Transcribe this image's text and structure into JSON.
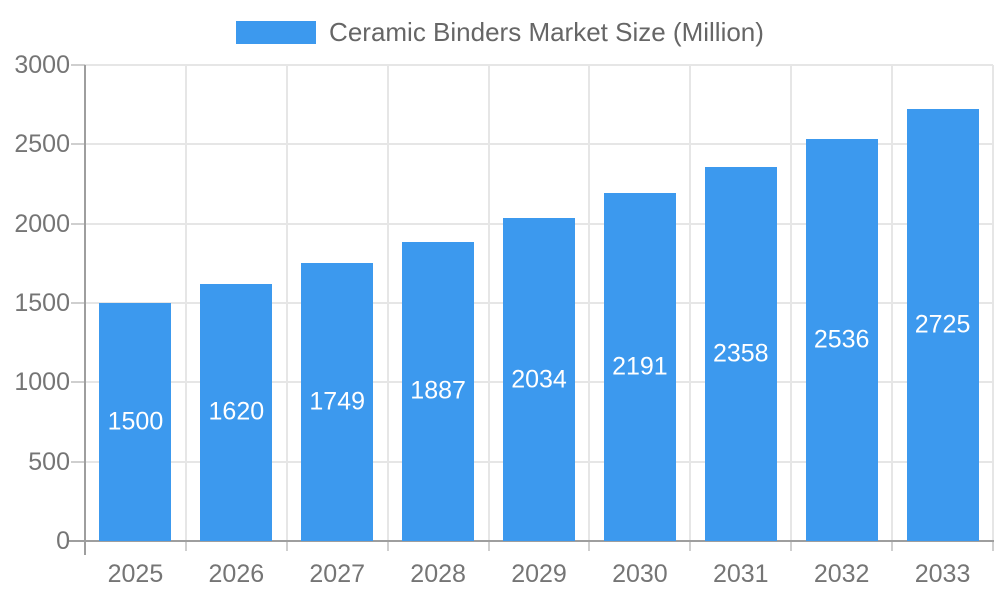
{
  "legend": {
    "label": "Ceramic Binders Market Size (Million)"
  },
  "colors": {
    "bar": "#3C99EE",
    "grid": "#E6E6E6",
    "axis": "#9E9E9E",
    "tick": "#CFCFCF",
    "tick_label": "#757575",
    "legend_text": "#666666",
    "bar_label": "#FFFFFF",
    "background": "#FFFFFF"
  },
  "chart_data": {
    "type": "bar",
    "title": "Ceramic Binders Market Size (Million)",
    "categories": [
      "2025",
      "2026",
      "2027",
      "2028",
      "2029",
      "2030",
      "2031",
      "2032",
      "2033"
    ],
    "values": [
      1500,
      1620,
      1749,
      1887,
      2034,
      2191,
      2358,
      2536,
      2725
    ],
    "xlabel": "",
    "ylabel": "",
    "ylim": [
      0,
      3000
    ],
    "yticks": [
      0,
      500,
      1000,
      1500,
      2000,
      2500,
      3000
    ],
    "grid": true,
    "legend_position": "top-center",
    "value_labels": "inside-center-white"
  }
}
